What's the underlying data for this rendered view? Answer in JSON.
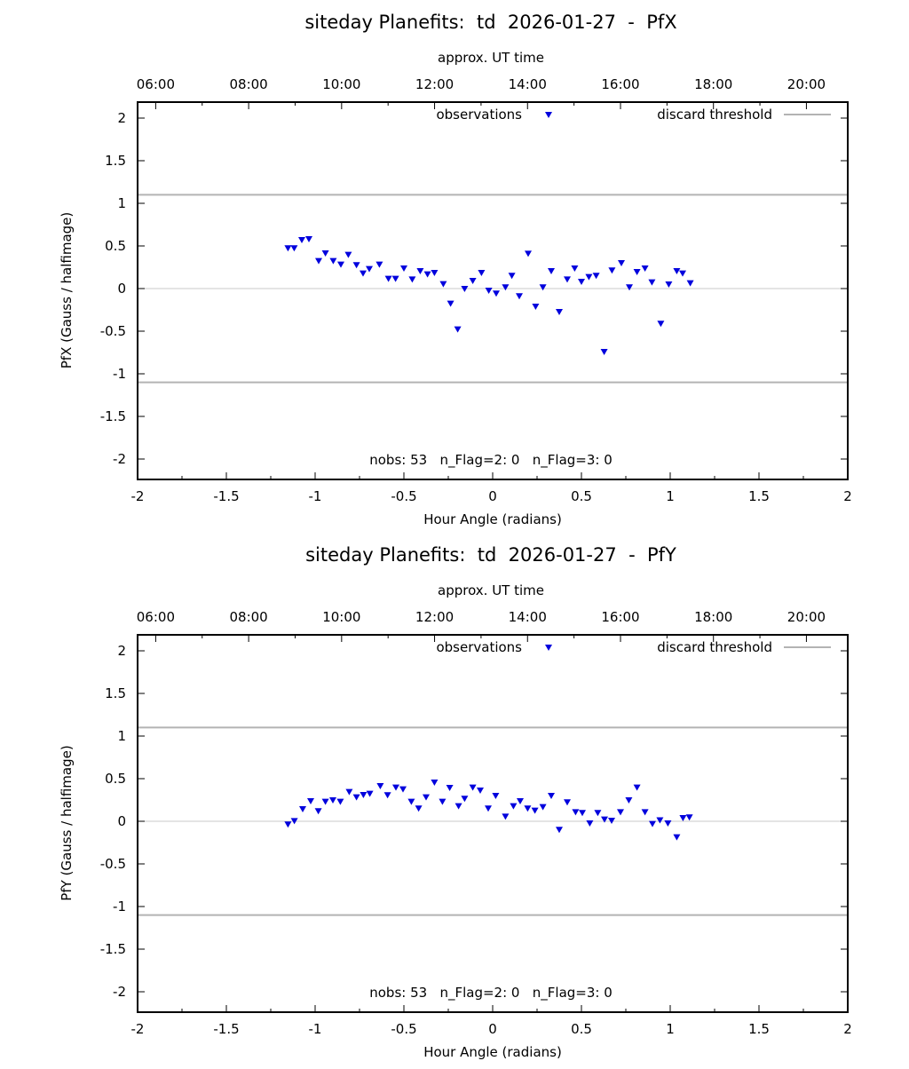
{
  "chart_data": [
    {
      "type": "scatter",
      "title": "siteday Planefits:  td  2026-01-27  -  PfX",
      "x2label": "approx. UT time",
      "xlabel": "Hour Angle (radians)",
      "ylabel": "PfX (Gauss / halfimage)",
      "annotation": "nobs: 53   n_Flag=2: 0   n_Flag=3: 0",
      "legend": [
        {
          "label": "observations",
          "type": "marker"
        },
        {
          "label": "discard threshold",
          "type": "line"
        }
      ],
      "xlim": [
        -2,
        2
      ],
      "ylim": [
        -2.2,
        2.2
      ],
      "x_ticks": [
        {
          "v": -2,
          "label": "-2"
        },
        {
          "v": -1.5,
          "label": "-1.5"
        },
        {
          "v": -1,
          "label": "-1"
        },
        {
          "v": -0.5,
          "label": "-0.5"
        },
        {
          "v": 0,
          "label": "0"
        },
        {
          "v": 0.5,
          "label": "0.5"
        },
        {
          "v": 1,
          "label": "1"
        },
        {
          "v": 1.5,
          "label": "1.5"
        },
        {
          "v": 2,
          "label": "2"
        }
      ],
      "x_minor": [
        -1.75,
        -1.25,
        -0.75,
        -0.25,
        0.25,
        0.75,
        1.25,
        1.75
      ],
      "y_ticks": [
        {
          "v": 2,
          "label": "2"
        },
        {
          "v": 1.5,
          "label": "1.5"
        },
        {
          "v": 1,
          "label": "1"
        },
        {
          "v": 0.5,
          "label": "0.5"
        },
        {
          "v": 0,
          "label": "0"
        },
        {
          "v": -0.5,
          "label": "-0.5"
        },
        {
          "v": -1,
          "label": "-1"
        },
        {
          "v": -1.5,
          "label": "-1.5"
        },
        {
          "v": -2,
          "label": "-2"
        }
      ],
      "x2_ticks": [
        {
          "hour": 6,
          "label": "06:00"
        },
        {
          "hour": 8,
          "label": "08:00"
        },
        {
          "hour": 10,
          "label": "10:00"
        },
        {
          "hour": 12,
          "label": "12:00"
        },
        {
          "hour": 14,
          "label": "14:00"
        },
        {
          "hour": 16,
          "label": "16:00"
        },
        {
          "hour": 18,
          "label": "18:00"
        },
        {
          "hour": 20,
          "label": "20:00"
        }
      ],
      "x2_minor_hours": [
        7,
        9,
        11,
        13,
        15,
        17,
        19
      ],
      "transit_hour": 13.25,
      "threshold": 1.1,
      "marker_color": "#0000dd",
      "threshold_color": "#b3b3b3",
      "zero_line_color": "#c8c8c8",
      "series": [
        {
          "name": "observations",
          "points": [
            [
              -1.153,
              0.476
            ],
            [
              -1.118,
              0.476
            ],
            [
              -1.075,
              0.573
            ],
            [
              -1.035,
              0.583
            ],
            [
              -0.98,
              0.327
            ],
            [
              -0.942,
              0.417
            ],
            [
              -0.898,
              0.327
            ],
            [
              -0.855,
              0.285
            ],
            [
              -0.813,
              0.4
            ],
            [
              -0.767,
              0.278
            ],
            [
              -0.73,
              0.181
            ],
            [
              -0.695,
              0.233
            ],
            [
              -0.638,
              0.285
            ],
            [
              -0.587,
              0.119
            ],
            [
              -0.547,
              0.119
            ],
            [
              -0.5,
              0.24
            ],
            [
              -0.453,
              0.111
            ],
            [
              -0.408,
              0.208
            ],
            [
              -0.367,
              0.171
            ],
            [
              -0.328,
              0.188
            ],
            [
              -0.278,
              0.056
            ],
            [
              -0.237,
              -0.173
            ],
            [
              -0.197,
              -0.475
            ],
            [
              -0.158,
              0.0
            ],
            [
              -0.112,
              0.094
            ],
            [
              -0.063,
              0.188
            ],
            [
              -0.022,
              -0.021
            ],
            [
              0.02,
              -0.055
            ],
            [
              0.072,
              0.018
            ],
            [
              0.108,
              0.153
            ],
            [
              0.15,
              -0.086
            ],
            [
              0.2,
              0.413
            ],
            [
              0.242,
              -0.208
            ],
            [
              0.283,
              0.018
            ],
            [
              0.33,
              0.208
            ],
            [
              0.375,
              -0.271
            ],
            [
              0.42,
              0.111
            ],
            [
              0.462,
              0.24
            ],
            [
              0.5,
              0.083
            ],
            [
              0.542,
              0.139
            ],
            [
              0.583,
              0.153
            ],
            [
              0.628,
              -0.74
            ],
            [
              0.672,
              0.216
            ],
            [
              0.725,
              0.302
            ],
            [
              0.77,
              0.018
            ],
            [
              0.813,
              0.198
            ],
            [
              0.858,
              0.24
            ],
            [
              0.897,
              0.077
            ],
            [
              0.947,
              -0.409
            ],
            [
              0.992,
              0.052
            ],
            [
              1.037,
              0.208
            ],
            [
              1.07,
              0.181
            ],
            [
              1.113,
              0.066
            ]
          ]
        }
      ]
    },
    {
      "type": "scatter",
      "title": "siteday Planefits:  td  2026-01-27  -  PfY",
      "x2label": "approx. UT time",
      "xlabel": "Hour Angle (radians)",
      "ylabel": "PfY (Gauss / halfimage)",
      "annotation": "nobs: 53   n_Flag=2: 0   n_Flag=3: 0",
      "legend": [
        {
          "label": "observations",
          "type": "marker"
        },
        {
          "label": "discard threshold",
          "type": "line"
        }
      ],
      "xlim": [
        -2,
        2
      ],
      "ylim": [
        -2.2,
        2.2
      ],
      "x_ticks": [
        {
          "v": -2,
          "label": "-2"
        },
        {
          "v": -1.5,
          "label": "-1.5"
        },
        {
          "v": -1,
          "label": "-1"
        },
        {
          "v": -0.5,
          "label": "-0.5"
        },
        {
          "v": 0,
          "label": "0"
        },
        {
          "v": 0.5,
          "label": "0.5"
        },
        {
          "v": 1,
          "label": "1"
        },
        {
          "v": 1.5,
          "label": "1.5"
        },
        {
          "v": 2,
          "label": "2"
        }
      ],
      "x_minor": [
        -1.75,
        -1.25,
        -0.75,
        -0.25,
        0.25,
        0.75,
        1.25,
        1.75
      ],
      "y_ticks": [
        {
          "v": 2,
          "label": "2"
        },
        {
          "v": 1.5,
          "label": "1.5"
        },
        {
          "v": 1,
          "label": "1"
        },
        {
          "v": 0.5,
          "label": "0.5"
        },
        {
          "v": 0,
          "label": "0"
        },
        {
          "v": -0.5,
          "label": "-0.5"
        },
        {
          "v": -1,
          "label": "-1"
        },
        {
          "v": -1.5,
          "label": "-1.5"
        },
        {
          "v": -2,
          "label": "-2"
        }
      ],
      "x2_ticks": [
        {
          "hour": 6,
          "label": "06:00"
        },
        {
          "hour": 8,
          "label": "08:00"
        },
        {
          "hour": 10,
          "label": "10:00"
        },
        {
          "hour": 12,
          "label": "12:00"
        },
        {
          "hour": 14,
          "label": "14:00"
        },
        {
          "hour": 16,
          "label": "16:00"
        },
        {
          "hour": 18,
          "label": "18:00"
        },
        {
          "hour": 20,
          "label": "20:00"
        }
      ],
      "x2_minor_hours": [
        7,
        9,
        11,
        13,
        15,
        17,
        19
      ],
      "transit_hour": 13.25,
      "threshold": 1.1,
      "marker_color": "#0000dd",
      "threshold_color": "#b3b3b3",
      "zero_line_color": "#c8c8c8",
      "series": [
        {
          "name": "observations",
          "points": [
            [
              -1.153,
              -0.034
            ],
            [
              -1.117,
              0.007
            ],
            [
              -1.07,
              0.146
            ],
            [
              -1.025,
              0.24
            ],
            [
              -0.982,
              0.122
            ],
            [
              -0.942,
              0.233
            ],
            [
              -0.9,
              0.25
            ],
            [
              -0.858,
              0.233
            ],
            [
              -0.808,
              0.348
            ],
            [
              -0.767,
              0.285
            ],
            [
              -0.728,
              0.313
            ],
            [
              -0.692,
              0.327
            ],
            [
              -0.633,
              0.417
            ],
            [
              -0.592,
              0.31
            ],
            [
              -0.545,
              0.4
            ],
            [
              -0.505,
              0.379
            ],
            [
              -0.458,
              0.233
            ],
            [
              -0.417,
              0.153
            ],
            [
              -0.375,
              0.285
            ],
            [
              -0.328,
              0.458
            ],
            [
              -0.283,
              0.233
            ],
            [
              -0.242,
              0.396
            ],
            [
              -0.192,
              0.181
            ],
            [
              -0.158,
              0.268
            ],
            [
              -0.112,
              0.4
            ],
            [
              -0.07,
              0.365
            ],
            [
              -0.025,
              0.153
            ],
            [
              0.017,
              0.302
            ],
            [
              0.072,
              0.059
            ],
            [
              0.117,
              0.181
            ],
            [
              0.155,
              0.24
            ],
            [
              0.197,
              0.153
            ],
            [
              0.238,
              0.129
            ],
            [
              0.283,
              0.171
            ],
            [
              0.33,
              0.302
            ],
            [
              0.375,
              -0.097
            ],
            [
              0.42,
              0.226
            ],
            [
              0.467,
              0.111
            ],
            [
              0.505,
              0.101
            ],
            [
              0.547,
              -0.021
            ],
            [
              0.592,
              0.101
            ],
            [
              0.63,
              0.025
            ],
            [
              0.67,
              0.01
            ],
            [
              0.72,
              0.111
            ],
            [
              0.767,
              0.25
            ],
            [
              0.813,
              0.4
            ],
            [
              0.858,
              0.111
            ],
            [
              0.9,
              -0.027
            ],
            [
              0.942,
              0.015
            ],
            [
              0.987,
              -0.021
            ],
            [
              1.037,
              -0.183
            ],
            [
              1.072,
              0.042
            ],
            [
              1.108,
              0.049
            ]
          ]
        }
      ]
    }
  ]
}
